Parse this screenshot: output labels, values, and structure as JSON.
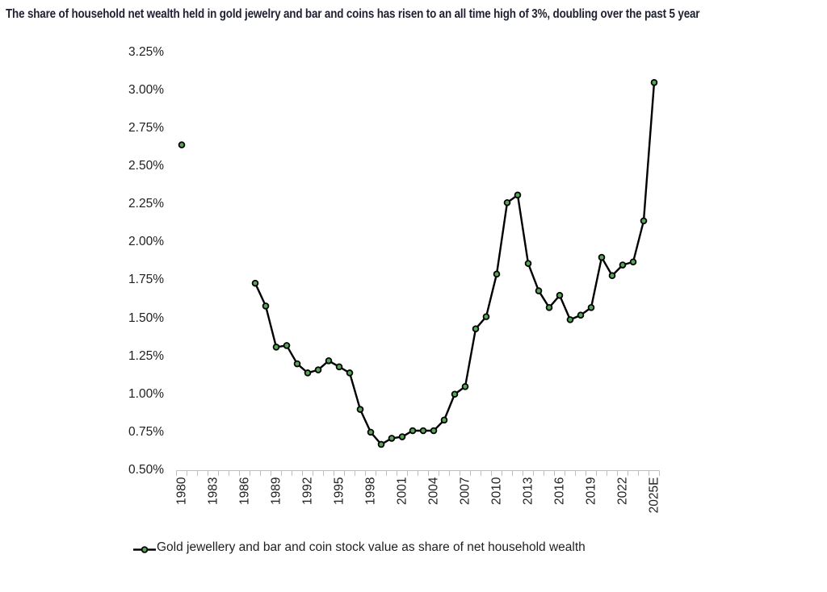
{
  "title": "The share of household net wealth held in gold jewelry and bar and coins has risen to an all time high of 3%, doubling over the past 5 year",
  "legend": {
    "label": "Gold jewellery and bar and coin stock value as share of net household wealth"
  },
  "colors": {
    "title_text": "#1f2133",
    "axis_text": "#1f1f1f",
    "tick": "#bfbfbf",
    "line": "#000000",
    "marker_fill": "#57a757",
    "marker_stroke": "#000000"
  },
  "chart_data": {
    "type": "line",
    "title": "The share of household net wealth held in gold jewelry and bar and coins has risen to an all time high of 3%, doubling over the past 5 year",
    "xlabel": "",
    "ylabel": "",
    "grid": false,
    "legend_position": "bottom",
    "ylim": [
      0.5,
      3.25
    ],
    "x_range": [
      1980,
      2025
    ],
    "y_ticks": [
      {
        "value": 0.5,
        "label": "0.50%"
      },
      {
        "value": 0.75,
        "label": "0.75%"
      },
      {
        "value": 1.0,
        "label": "1.00%"
      },
      {
        "value": 1.25,
        "label": "1.25%"
      },
      {
        "value": 1.5,
        "label": "1.50%"
      },
      {
        "value": 1.75,
        "label": "1.75%"
      },
      {
        "value": 2.0,
        "label": "2.00%"
      },
      {
        "value": 2.25,
        "label": "2.25%"
      },
      {
        "value": 2.5,
        "label": "2.50%"
      },
      {
        "value": 2.75,
        "label": "2.75%"
      },
      {
        "value": 3.0,
        "label": "3.00%"
      },
      {
        "value": 3.25,
        "label": "3.25%"
      }
    ],
    "x_tick_labels": [
      {
        "year": 1980,
        "label": "1980"
      },
      {
        "year": 1983,
        "label": "1983"
      },
      {
        "year": 1986,
        "label": "1986"
      },
      {
        "year": 1989,
        "label": "1989"
      },
      {
        "year": 1992,
        "label": "1992"
      },
      {
        "year": 1995,
        "label": "1995"
      },
      {
        "year": 1998,
        "label": "1998"
      },
      {
        "year": 2001,
        "label": "2001"
      },
      {
        "year": 2004,
        "label": "2004"
      },
      {
        "year": 2007,
        "label": "2007"
      },
      {
        "year": 2010,
        "label": "2010"
      },
      {
        "year": 2013,
        "label": "2013"
      },
      {
        "year": 2016,
        "label": "2016"
      },
      {
        "year": 2019,
        "label": "2019"
      },
      {
        "year": 2022,
        "label": "2022"
      },
      {
        "year": 2025,
        "label": "2025E"
      }
    ],
    "series": [
      {
        "name": "Gold jewellery and bar and coin stock value as share of net household wealth",
        "points": [
          {
            "year": 1980,
            "value": 2.64
          },
          {
            "year": 1987,
            "value": 1.73
          },
          {
            "year": 1988,
            "value": 1.58
          },
          {
            "year": 1989,
            "value": 1.31
          },
          {
            "year": 1990,
            "value": 1.32
          },
          {
            "year": 1991,
            "value": 1.2
          },
          {
            "year": 1992,
            "value": 1.14
          },
          {
            "year": 1993,
            "value": 1.16
          },
          {
            "year": 1994,
            "value": 1.22
          },
          {
            "year": 1995,
            "value": 1.18
          },
          {
            "year": 1996,
            "value": 1.14
          },
          {
            "year": 1997,
            "value": 0.9
          },
          {
            "year": 1998,
            "value": 0.75
          },
          {
            "year": 1999,
            "value": 0.67
          },
          {
            "year": 2000,
            "value": 0.71
          },
          {
            "year": 2001,
            "value": 0.72
          },
          {
            "year": 2002,
            "value": 0.76
          },
          {
            "year": 2003,
            "value": 0.76
          },
          {
            "year": 2004,
            "value": 0.76
          },
          {
            "year": 2005,
            "value": 0.83
          },
          {
            "year": 2006,
            "value": 1.0
          },
          {
            "year": 2007,
            "value": 1.05
          },
          {
            "year": 2008,
            "value": 1.43
          },
          {
            "year": 2009,
            "value": 1.51
          },
          {
            "year": 2010,
            "value": 1.79
          },
          {
            "year": 2011,
            "value": 2.26
          },
          {
            "year": 2012,
            "value": 2.31
          },
          {
            "year": 2013,
            "value": 1.86
          },
          {
            "year": 2014,
            "value": 1.68
          },
          {
            "year": 2015,
            "value": 1.57
          },
          {
            "year": 2016,
            "value": 1.65
          },
          {
            "year": 2017,
            "value": 1.49
          },
          {
            "year": 2018,
            "value": 1.52
          },
          {
            "year": 2019,
            "value": 1.57
          },
          {
            "year": 2020,
            "value": 1.9
          },
          {
            "year": 2021,
            "value": 1.78
          },
          {
            "year": 2022,
            "value": 1.85
          },
          {
            "year": 2023,
            "value": 1.87
          },
          {
            "year": 2024,
            "value": 2.14
          },
          {
            "year": 2025,
            "value": 3.05
          }
        ]
      }
    ]
  }
}
